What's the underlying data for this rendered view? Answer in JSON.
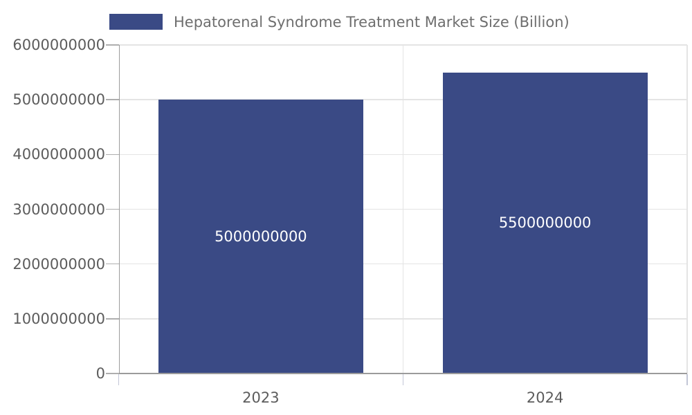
{
  "legend": {
    "label": "Hepatorenal Syndrome Treatment Market Size (Billion)"
  },
  "chart_data": {
    "type": "bar",
    "title": "Hepatorenal Syndrome Treatment Market Size (Billion)",
    "categories": [
      "2023",
      "2024"
    ],
    "series": [
      {
        "name": "Hepatorenal Syndrome Treatment Market Size (Billion)",
        "values": [
          5000000000,
          5500000000
        ]
      }
    ],
    "value_labels": [
      "5000000000",
      "5500000000"
    ],
    "ylim": [
      0,
      6000000000
    ],
    "yticks": [
      0,
      1000000000,
      2000000000,
      3000000000,
      4000000000,
      5000000000,
      6000000000
    ],
    "ytick_labels": [
      "0",
      "1000000000",
      "2000000000",
      "3000000000",
      "4000000000",
      "5000000000",
      "6000000000"
    ],
    "xlabel": "",
    "ylabel": "",
    "grid": true,
    "legend_position": "top-left",
    "colors": {
      "bar": "#3A4A85",
      "value_label": "#ffffff",
      "axis": "#9b9b9b",
      "gridline": "#e4e4e4",
      "y_tick_mark": "#aeaeae",
      "x_tick_mark": "#c2c6d6",
      "tick_text": "#5c5c5c",
      "title_text": "#6e6e6e",
      "background": "#ffffff"
    }
  }
}
